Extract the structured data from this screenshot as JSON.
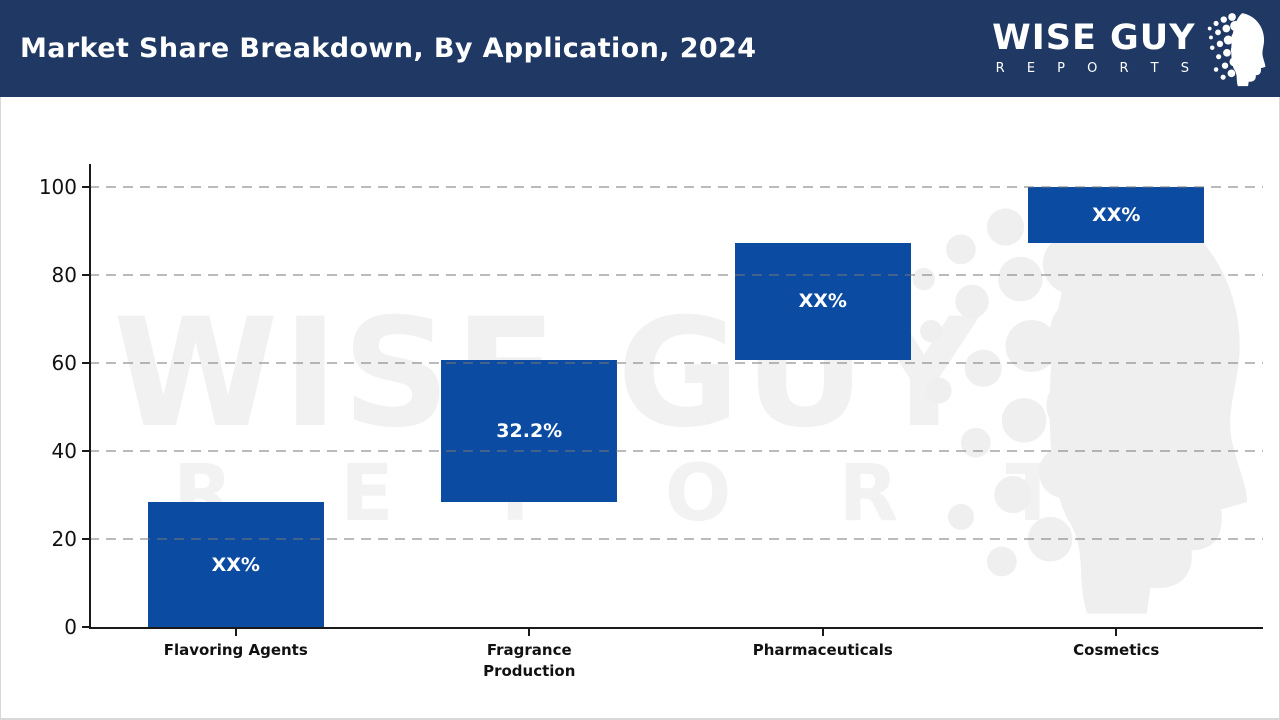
{
  "header": {
    "title": "Market Share Breakdown, By Application, 2024",
    "logo": {
      "name": "WISE GUY",
      "sub": "R E P O R T S"
    }
  },
  "watermark": {
    "name": "WISE GUY",
    "sub": "R E P O R T S"
  },
  "chart_data": {
    "type": "bar",
    "variant": "waterfall",
    "title": "Market Share Breakdown, By Application, 2024",
    "categories": [
      "Flavoring Agents",
      "Fragrance Production",
      "Pharmaceuticals",
      "Cosmetics"
    ],
    "segments": [
      {
        "category": "Flavoring Agents",
        "start": 0,
        "end": 28.4,
        "label": "XX%"
      },
      {
        "category": "Fragrance Production",
        "start": 28.4,
        "end": 60.7,
        "label": "32.2%"
      },
      {
        "category": "Pharmaceuticals",
        "start": 60.7,
        "end": 87.3,
        "label": "XX%"
      },
      {
        "category": "Cosmetics",
        "start": 87.3,
        "end": 100,
        "label": "XX%"
      }
    ],
    "ylim": [
      0,
      100
    ],
    "yticks": [
      0,
      20,
      40,
      60,
      80,
      100
    ],
    "xlabel": "",
    "ylabel": "",
    "legend": false,
    "grid": {
      "axis": "y",
      "style": "dashed"
    },
    "colors": {
      "bar": "#0b4ba1",
      "axis": "#1a1a1a",
      "gridline": "rgba(120,120,120,0.5)",
      "header_bg": "#1f3864",
      "bar_label_text": "#ffffff"
    }
  }
}
